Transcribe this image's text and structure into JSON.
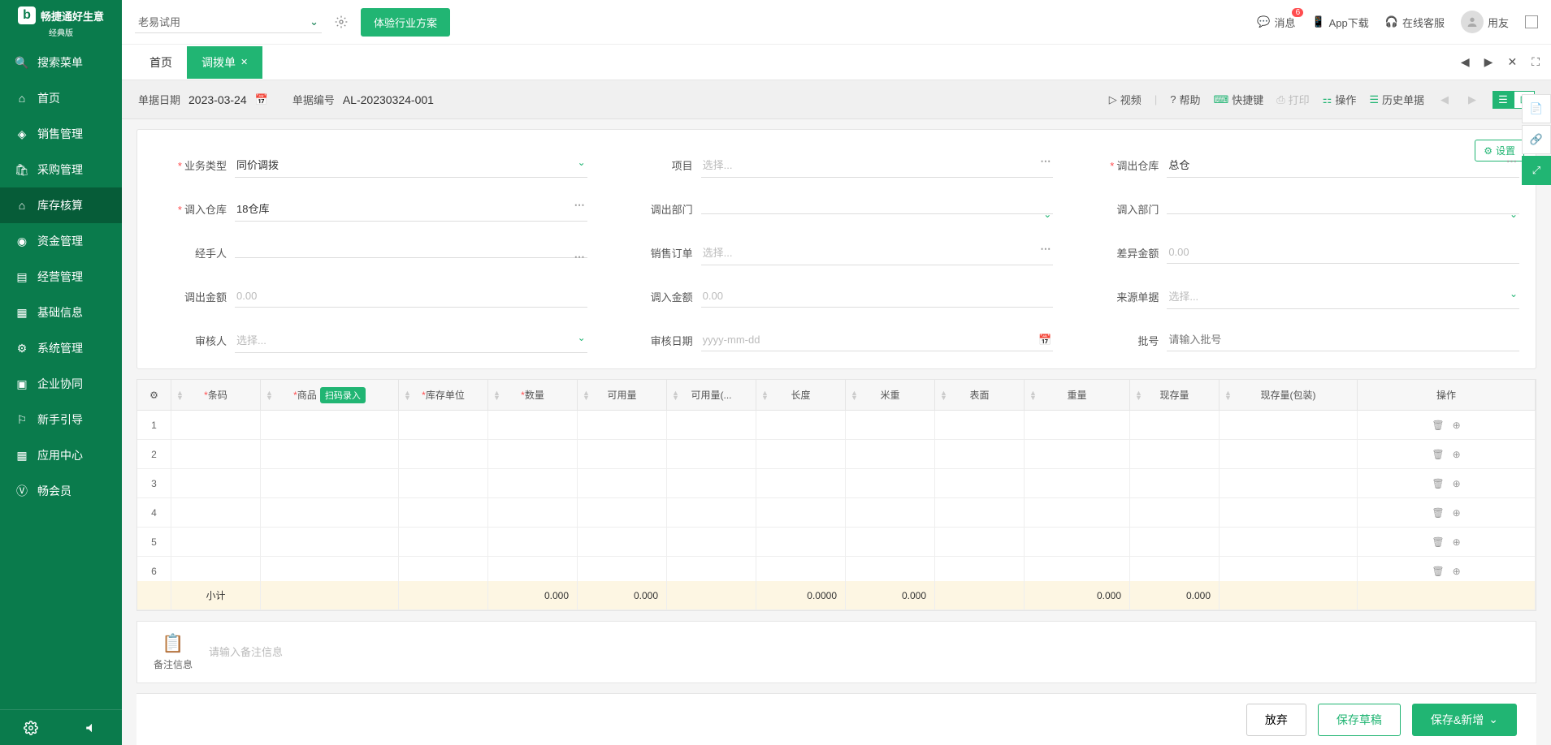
{
  "brand": {
    "name": "畅捷通好生意",
    "edition": "经典版"
  },
  "sidebar": {
    "items": [
      {
        "label": "搜索菜单",
        "icon": "search"
      },
      {
        "label": "首页",
        "icon": "home"
      },
      {
        "label": "销售管理",
        "icon": "tag"
      },
      {
        "label": "采购管理",
        "icon": "bag"
      },
      {
        "label": "库存核算",
        "icon": "box",
        "active": true
      },
      {
        "label": "资金管理",
        "icon": "money"
      },
      {
        "label": "经营管理",
        "icon": "doc"
      },
      {
        "label": "基础信息",
        "icon": "list"
      },
      {
        "label": "系统管理",
        "icon": "gear"
      },
      {
        "label": "企业协同",
        "icon": "link"
      },
      {
        "label": "新手引导",
        "icon": "flag"
      },
      {
        "label": "应用中心",
        "icon": "app"
      },
      {
        "label": "畅会员",
        "icon": "vip"
      }
    ]
  },
  "topbar": {
    "org": "老易试用",
    "try_btn": "体验行业方案",
    "msg": "消息",
    "msg_badge": "6",
    "appdl": "App下载",
    "service": "在线客服",
    "user": "用友"
  },
  "tabs": {
    "home": "首页",
    "active": "调拨单"
  },
  "toolbar": {
    "date_label": "单据日期",
    "date_value": "2023-03-24",
    "no_label": "单据编号",
    "no_value": "AL-20230324-001",
    "video": "视频",
    "help": "帮助",
    "shortcut": "快捷键",
    "print": "打印",
    "operate": "操作",
    "history": "历史单据"
  },
  "form": {
    "biz_type_label": "业务类型",
    "biz_type_value": "同价调拨",
    "project_label": "项目",
    "project_ph": "选择...",
    "out_wh_label": "调出仓库",
    "out_wh_value": "总仓",
    "in_wh_label": "调入仓库",
    "in_wh_value": "18仓库",
    "out_dept_label": "调出部门",
    "in_dept_label": "调入部门",
    "handler_label": "经手人",
    "sales_order_label": "销售订单",
    "sales_order_ph": "选择...",
    "diff_amt_label": "差异金额",
    "diff_amt_value": "0.00",
    "out_amt_label": "调出金额",
    "out_amt_value": "0.00",
    "in_amt_label": "调入金额",
    "in_amt_value": "0.00",
    "src_doc_label": "来源单据",
    "src_doc_ph": "选择...",
    "auditor_label": "审核人",
    "auditor_ph": "选择...",
    "audit_date_label": "审核日期",
    "audit_date_ph": "yyyy-mm-dd",
    "batch_label": "批号",
    "batch_ph": "请输入批号",
    "settings": "设置"
  },
  "table": {
    "headers": {
      "barcode": "条码",
      "product": "商品",
      "scan": "扫码录入",
      "unit": "库存单位",
      "qty": "数量",
      "avail": "可用量",
      "availp": "可用量(...",
      "len": "长度",
      "mw": "米重",
      "surface": "表面",
      "weight": "重量",
      "stock": "现存量",
      "stockp": "现存量(包装)",
      "ops": "操作"
    },
    "rows": [
      1,
      2,
      3,
      4,
      5,
      6
    ],
    "subtotal_label": "小计",
    "subtotals": {
      "qty": "0.000",
      "avail": "0.000",
      "len": "0.0000",
      "mw": "0.000",
      "weight": "0.000",
      "stock": "0.000"
    }
  },
  "remark": {
    "label": "备注信息",
    "placeholder": "请输入备注信息"
  },
  "footer": {
    "discard": "放弃",
    "draft": "保存草稿",
    "save_new": "保存&新增"
  },
  "colors": {
    "primary": "#21b573",
    "sidebar": "#0a7b4c",
    "subtotal_bg": "#fdf6e3",
    "border": "#e5e5e5"
  }
}
